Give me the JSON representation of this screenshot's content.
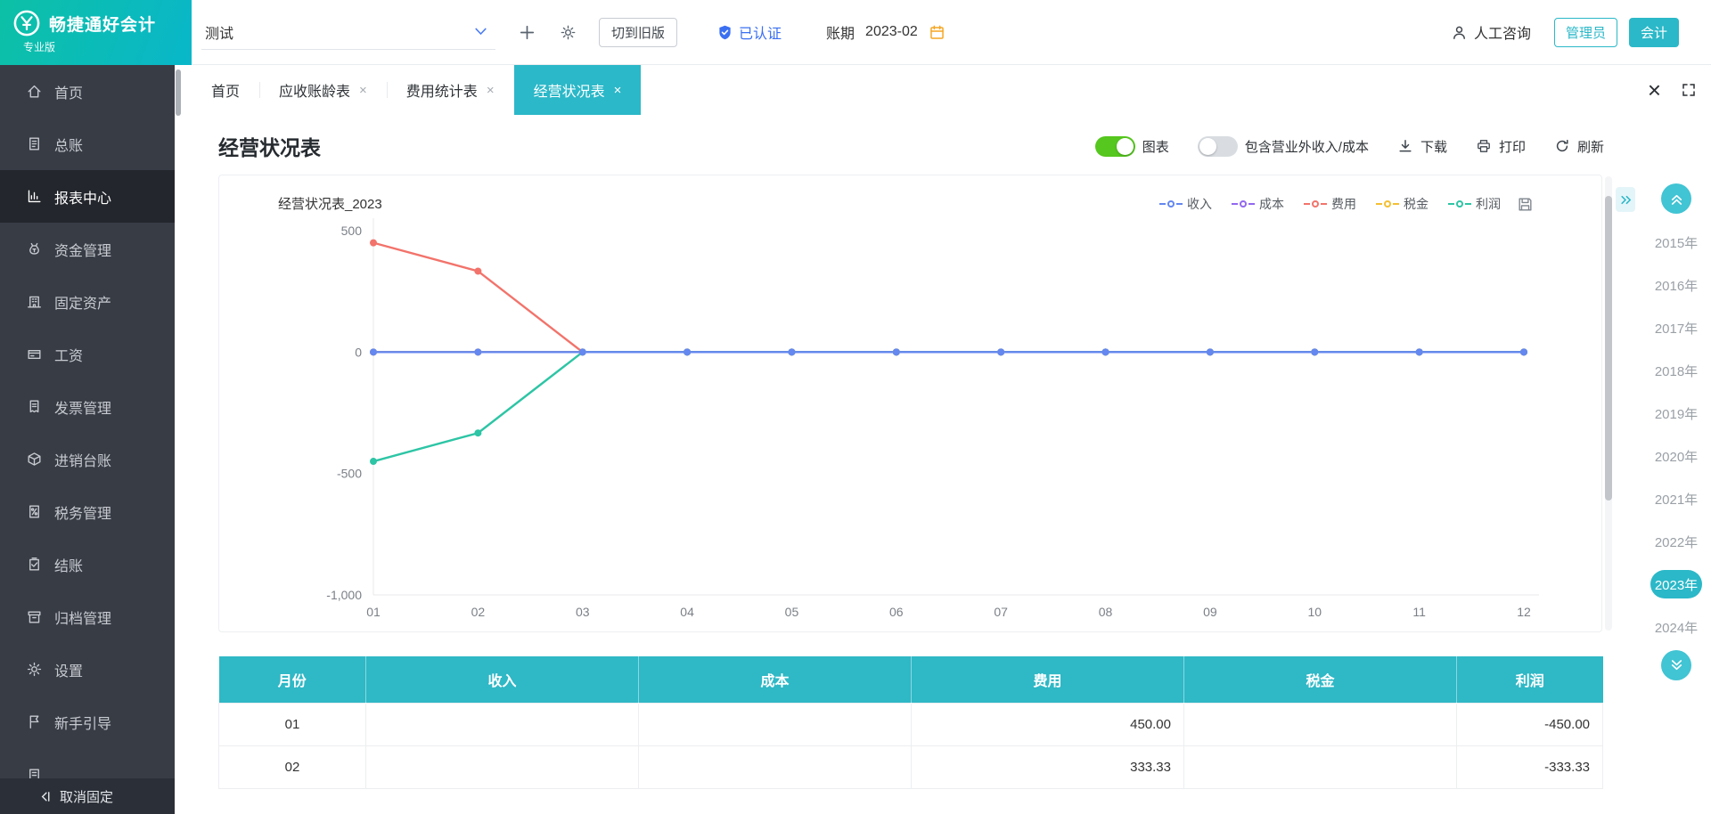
{
  "header": {
    "logo_title": "畅捷通好会计",
    "logo_subtitle": "专业版",
    "account_name": "测试",
    "switch_old_label": "切到旧版",
    "certified_label": "已认证",
    "period_label": "账期",
    "period_value": "2023-02",
    "consult_label": "人工咨询",
    "admin_label": "管理员",
    "accountant_label": "会计"
  },
  "sidebar": {
    "items": [
      {
        "key": "home",
        "label": "首页",
        "icon": "home-icon",
        "active": false
      },
      {
        "key": "general-ledger",
        "label": "总账",
        "icon": "ledger-icon",
        "active": false
      },
      {
        "key": "report-center",
        "label": "报表中心",
        "icon": "report-icon",
        "active": true
      },
      {
        "key": "funds",
        "label": "资金管理",
        "icon": "fund-icon",
        "active": false
      },
      {
        "key": "fixed-assets",
        "label": "固定资产",
        "icon": "fixed-asset-icon",
        "active": false
      },
      {
        "key": "salary",
        "label": "工资",
        "icon": "salary-icon",
        "active": false
      },
      {
        "key": "invoice",
        "label": "发票管理",
        "icon": "invoice-icon",
        "active": false
      },
      {
        "key": "inventory-ledger",
        "label": "进销台账",
        "icon": "inventory-icon",
        "active": false
      },
      {
        "key": "tax",
        "label": "税务管理",
        "icon": "tax-icon",
        "active": false
      },
      {
        "key": "closing",
        "label": "结账",
        "icon": "closing-icon",
        "active": false
      },
      {
        "key": "archive",
        "label": "归档管理",
        "icon": "archive-icon",
        "active": false
      },
      {
        "key": "settings",
        "label": "设置",
        "icon": "settings-icon",
        "active": false
      },
      {
        "key": "guide",
        "label": "新手引导",
        "icon": "guide-icon",
        "active": false
      },
      {
        "key": "more",
        "label": "",
        "icon": "more-icon",
        "active": false
      }
    ],
    "unpin_label": "取消固定"
  },
  "tabs": {
    "items": [
      {
        "key": "home",
        "label": "首页",
        "closable": false,
        "active": false
      },
      {
        "key": "receivable-aging",
        "label": "应收账龄表",
        "closable": true,
        "active": false
      },
      {
        "key": "expense-stats",
        "label": "费用统计表",
        "closable": true,
        "active": false
      },
      {
        "key": "operating-status",
        "label": "经营状况表",
        "closable": true,
        "active": true
      }
    ]
  },
  "toolbar": {
    "page_title": "经营状况表",
    "chart_toggle": {
      "label": "图表",
      "on": true
    },
    "include_toggle": {
      "label": "包含营业外收入/成本",
      "on": false
    },
    "download_label": "下载",
    "print_label": "打印",
    "refresh_label": "刷新"
  },
  "chart_data": {
    "type": "line",
    "title": "经营状况表_2023",
    "categories": [
      "01",
      "02",
      "03",
      "04",
      "05",
      "06",
      "07",
      "08",
      "09",
      "10",
      "11",
      "12"
    ],
    "series": [
      {
        "key": "income",
        "name": "收入",
        "color": "#6487f0",
        "values": [
          0,
          0,
          0,
          0,
          0,
          0,
          0,
          0,
          0,
          0,
          0,
          0
        ]
      },
      {
        "key": "cost",
        "name": "成本",
        "color": "#9268ef",
        "values": [
          0,
          0,
          0,
          0,
          0,
          0,
          0,
          0,
          0,
          0,
          0,
          0
        ]
      },
      {
        "key": "expense",
        "name": "费用",
        "color": "#f2736b",
        "values": [
          450,
          333.33,
          0,
          0,
          0,
          0,
          0,
          0,
          0,
          0,
          0,
          0
        ]
      },
      {
        "key": "tax",
        "name": "税金",
        "color": "#f5bf32",
        "values": [
          0,
          0,
          0,
          0,
          0,
          0,
          0,
          0,
          0,
          0,
          0,
          0
        ]
      },
      {
        "key": "profit",
        "name": "利润",
        "color": "#2dc5a5",
        "values": [
          -450,
          -333.33,
          0,
          0,
          0,
          0,
          0,
          0,
          0,
          0,
          0,
          0
        ]
      }
    ],
    "ylim": [
      -1000,
      500
    ],
    "yticks": [
      {
        "value": 500,
        "label": "500"
      },
      {
        "value": 0,
        "label": "0"
      },
      {
        "value": -500,
        "label": "-500"
      },
      {
        "value": -1000,
        "label": "-1,000"
      }
    ],
    "legend_position": "top-right",
    "grid": false
  },
  "year_panel": {
    "years": [
      "2015年",
      "2016年",
      "2017年",
      "2018年",
      "2019年",
      "2020年",
      "2021年",
      "2022年",
      "2023年",
      "2024年"
    ],
    "selected": "2023年"
  },
  "table": {
    "headers": [
      "月份",
      "收入",
      "成本",
      "费用",
      "税金",
      "利润"
    ],
    "rows": [
      [
        "01",
        "",
        "",
        "450.00",
        "",
        "-450.00"
      ],
      [
        "02",
        "",
        "",
        "333.33",
        "",
        "-333.33"
      ]
    ]
  },
  "colors": {
    "brand_teal": "#2bb8c8",
    "toggle_on": "#55c71e",
    "certified_blue": "#3a6ff2",
    "calendar_orange": "#f5a623"
  }
}
